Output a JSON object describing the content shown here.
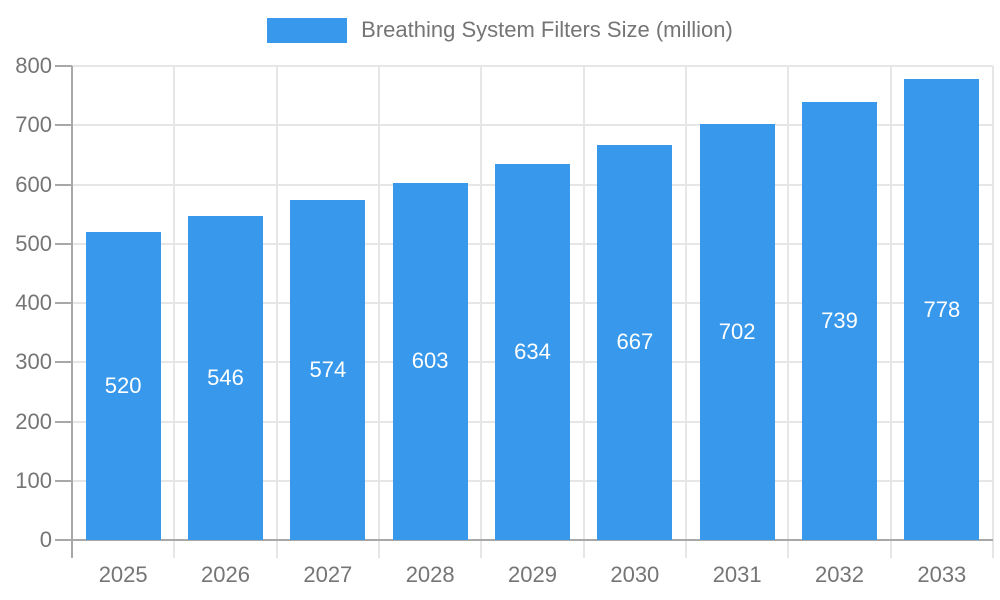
{
  "chart_data": {
    "type": "bar",
    "title": "Breathing System Filters Size (million)",
    "categories": [
      "2025",
      "2026",
      "2027",
      "2028",
      "2029",
      "2030",
      "2031",
      "2032",
      "2033"
    ],
    "values": [
      520,
      546,
      574,
      603,
      634,
      667,
      702,
      739,
      778
    ],
    "xlabel": "",
    "ylabel": "",
    "ylim": [
      0,
      800
    ],
    "yticks": [
      0,
      100,
      200,
      300,
      400,
      500,
      600,
      700,
      800
    ],
    "grid": true,
    "legend_position": "top",
    "colors": {
      "bar": "#3899EC",
      "value_label": "#ffffff",
      "axis_text": "#757575",
      "axis_line": "#a8a8a8",
      "gridline": "#e6e6e6"
    }
  }
}
